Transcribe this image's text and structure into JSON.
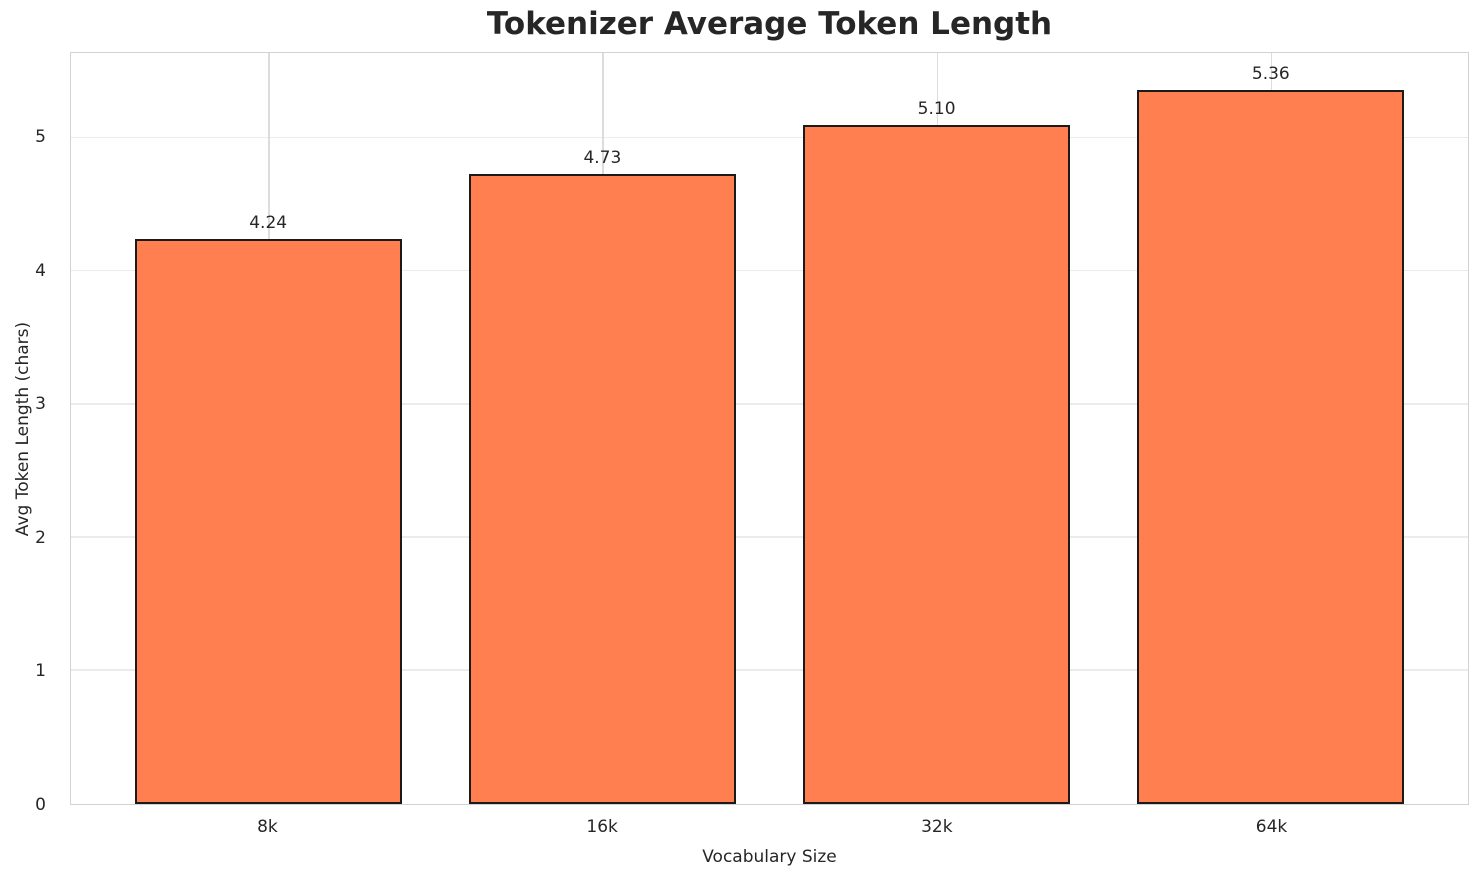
{
  "chart_data": {
    "type": "bar",
    "title": "Tokenizer Average Token Length",
    "xlabel": "Vocabulary Size",
    "ylabel": "Avg Token Length (chars)",
    "categories": [
      "8k",
      "16k",
      "32k",
      "64k"
    ],
    "values": [
      4.24,
      4.73,
      5.1,
      5.36
    ],
    "value_labels": [
      "4.24",
      "4.73",
      "5.10",
      "5.36"
    ],
    "yticks": [
      0,
      1,
      2,
      3,
      4,
      5
    ],
    "ytick_labels": [
      "0",
      "1",
      "2",
      "3",
      "4",
      "5"
    ],
    "ylim": [
      0,
      5.64
    ],
    "xlim": [
      -0.59,
      3.59
    ],
    "bar_width": 0.8,
    "grid": true,
    "legend": "none",
    "colors": {
      "bar_fill": "#FF7F50",
      "bar_edge": "#1a1a1a",
      "grid_horizontal": "#ebebeb",
      "grid_vertical": "#dcdcdc",
      "spine": "#d2d2d2",
      "text": "#262626"
    }
  }
}
